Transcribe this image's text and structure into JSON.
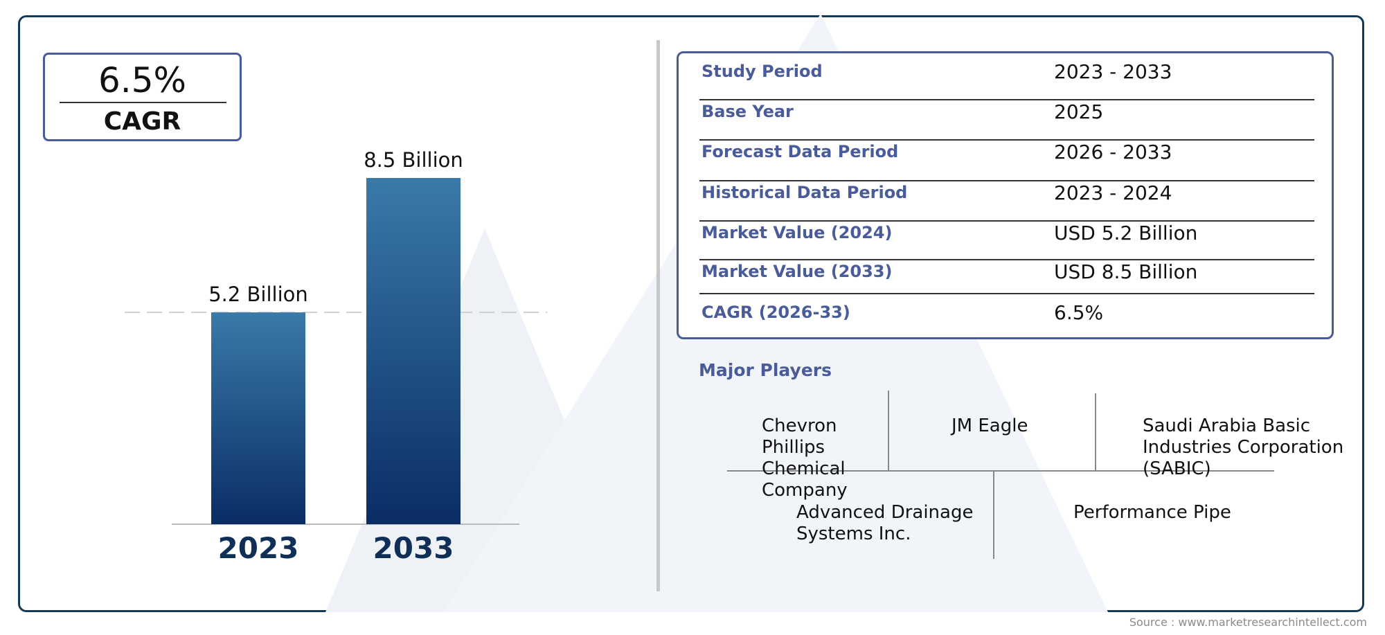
{
  "cagr_badge": {
    "value": "6.5%",
    "label": "CAGR"
  },
  "chart_data": {
    "type": "bar",
    "categories": [
      "2023",
      "2033"
    ],
    "values": [
      5.2,
      8.5
    ],
    "data_labels": [
      "5.2 Billion",
      "8.5 Billion"
    ],
    "title": "",
    "xlabel": "",
    "ylabel": "",
    "ylim": [
      0,
      8.5
    ],
    "grid": false,
    "colors": {
      "bar_top": "#3a7aa8",
      "bar_bottom": "#0a2d63",
      "category_text": "#0f2f57",
      "reference_line": "#cfcfcf"
    }
  },
  "study_table": {
    "rows": [
      {
        "label": "Study Period",
        "value": "2023 - 2033"
      },
      {
        "label": "Base Year",
        "value": "2025"
      },
      {
        "label": "Forecast Data Period",
        "value": "2026 - 2033"
      },
      {
        "label": "Historical Data Period",
        "value": "2023 - 2024"
      },
      {
        "label": "Market Value (2024)",
        "value": "USD 5.2 Billion"
      },
      {
        "label": "Market Value (2033)",
        "value": "USD 8.5 Billion"
      },
      {
        "label": "CAGR (2026-33)",
        "value": "6.5%"
      }
    ]
  },
  "major_players": {
    "heading": "Major Players",
    "players": [
      "Chevron Phillips Chemical Company",
      "JM Eagle",
      "Saudi Arabia Basic Industries Corporation (SABIC)",
      "Advanced Drainage Systems Inc.",
      "Performance Pipe"
    ]
  },
  "source": "Source : www.marketresearchintellect.com",
  "colors": {
    "accent": "#4a5b99",
    "frame": "#123a5a"
  }
}
